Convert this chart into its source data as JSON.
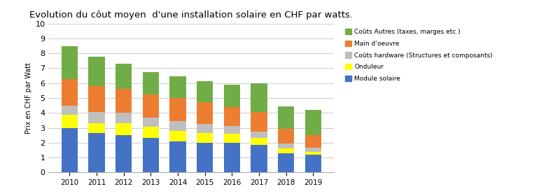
{
  "title": "Evolution du côut moyen  d'une installation solaire en CHF par watts.",
  "ylabel": "Prix en CHF par Watt",
  "years": [
    2010,
    2011,
    2012,
    2013,
    2014,
    2015,
    2016,
    2017,
    2018,
    2019
  ],
  "module_solaire": [
    3.0,
    2.65,
    2.5,
    2.3,
    2.1,
    2.0,
    2.0,
    1.85,
    1.3,
    1.2
  ],
  "onduleur": [
    0.85,
    0.65,
    0.8,
    0.75,
    0.7,
    0.65,
    0.6,
    0.45,
    0.3,
    0.2
  ],
  "couts_hardware": [
    0.65,
    0.75,
    0.7,
    0.65,
    0.65,
    0.6,
    0.5,
    0.45,
    0.35,
    0.25
  ],
  "main_oeuvre": [
    1.75,
    1.75,
    1.6,
    1.55,
    1.55,
    1.45,
    1.3,
    1.3,
    1.0,
    0.85
  ],
  "couts_autres": [
    2.25,
    1.95,
    1.7,
    1.5,
    1.45,
    1.45,
    1.5,
    1.95,
    1.5,
    1.7
  ],
  "colors": {
    "module_solaire": "#4472C4",
    "onduleur": "#FFFF00",
    "couts_hardware": "#BFBFBF",
    "main_oeuvre": "#ED7D31",
    "couts_autres": "#70AD47"
  },
  "legend_labels": [
    "Coûts Autres (taxes, marges etc.)",
    "Main d’oeuvre",
    "Coûts hardware (Structures et composants)",
    "Onduleur",
    "Module solaire"
  ],
  "ylim": [
    0,
    10
  ],
  "yticks": [
    0,
    1,
    2,
    3,
    4,
    5,
    6,
    7,
    8,
    9,
    10
  ],
  "background_color": "#FFFFFF",
  "grid_color": "#CCCCCC",
  "bar_width": 0.6
}
